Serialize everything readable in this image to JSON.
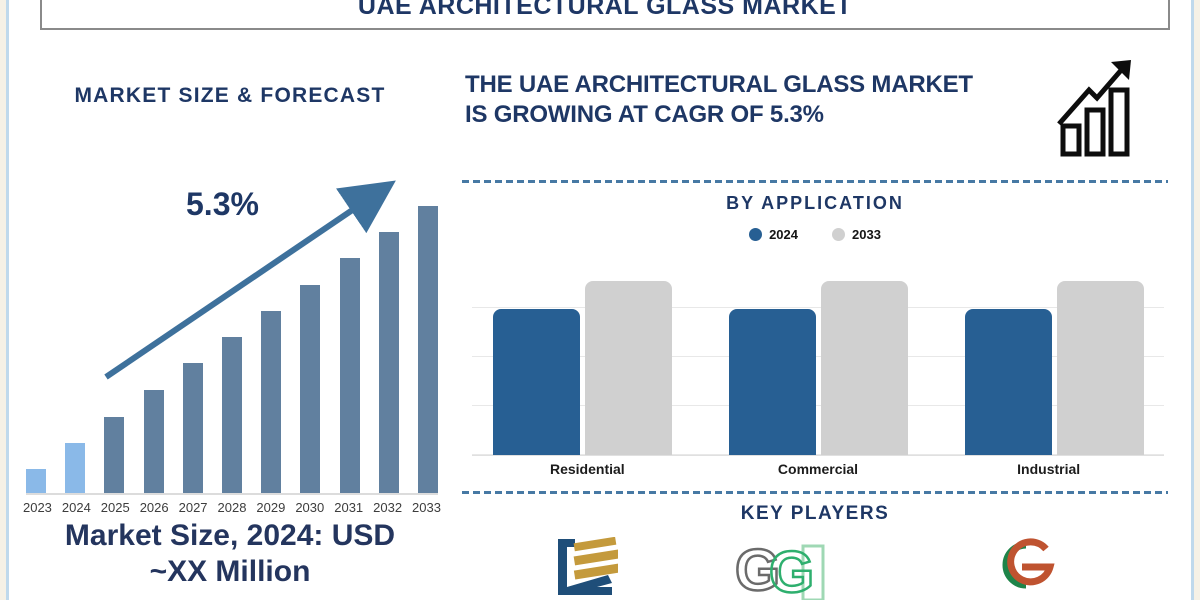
{
  "header": {
    "title": "UAE ARCHITECTURAL GLASS MARKET"
  },
  "left_panel": {
    "heading": "MARKET SIZE & FORECAST",
    "growth_label": "5.3%",
    "note_line1": "Market Size, 2024: USD",
    "note_line2": "~XX Million"
  },
  "right_panel": {
    "headline_line1": "THE UAE ARCHITECTURAL GLASS MARKET",
    "headline_line2": "IS GROWING AT CAGR OF 5.3%",
    "application_title": "BY APPLICATION",
    "key_players_title": "KEY PLAYERS",
    "logos": [
      "navy-gold-glass-panel-logo",
      "ggi-outline-logo",
      "green-red-double-g-logo"
    ]
  },
  "colors": {
    "navy_text": "#1E3765",
    "arrow_blue": "#3E719C",
    "dash_blue": "#4779A4",
    "border_blue": "#BFD9EC",
    "box_border_gray": "#8A8A8A"
  },
  "chart_data": [
    {
      "type": "bar",
      "title": "MARKET SIZE & FORECAST",
      "categories": [
        "2023",
        "2024",
        "2025",
        "2026",
        "2027",
        "2028",
        "2029",
        "2030",
        "2031",
        "2032",
        "2033"
      ],
      "values": [
        8.4,
        17.4,
        26.5,
        35.9,
        45.3,
        54.4,
        63.4,
        72.5,
        81.9,
        90.9,
        100
      ],
      "ylabel": "",
      "xlabel": "",
      "ylim": [
        0,
        100
      ],
      "grid": false,
      "units_note": "relative bar height %, no value axis shown",
      "annotation": "5.3% with rising arrow",
      "bar_color": "#61809F",
      "highlight_color": "#8AB9E8",
      "highlighted_categories": [
        "2023",
        "2024"
      ]
    },
    {
      "type": "bar",
      "title": "BY APPLICATION",
      "categories": [
        "Residential",
        "Commercial",
        "Industrial"
      ],
      "series": [
        {
          "name": "2024",
          "color": "#275F93",
          "values": [
            84,
            84,
            84
          ]
        },
        {
          "name": "2033",
          "color": "#D0D0D0",
          "values": [
            100,
            100,
            100
          ]
        }
      ],
      "ylim": [
        0,
        100
      ],
      "grid": true,
      "legend_position": "top",
      "units_note": "relative bar height %, no value axis shown"
    }
  ]
}
